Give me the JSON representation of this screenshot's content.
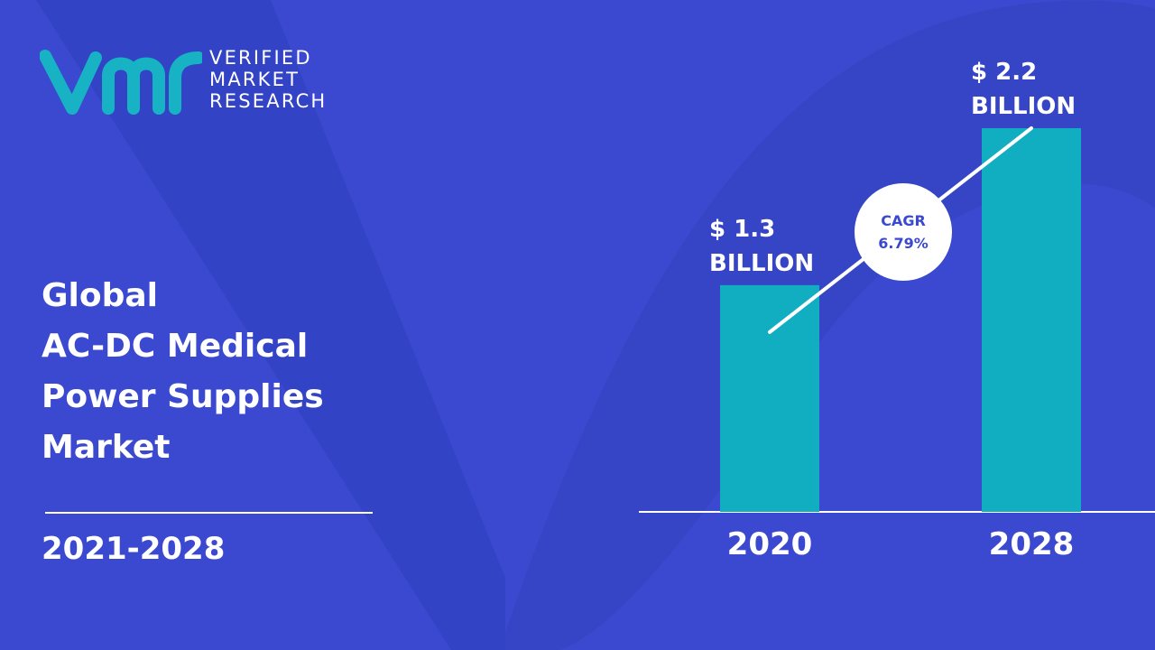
{
  "brand": {
    "lines": [
      "VERIFIED",
      "MARKET",
      "RESEARCH"
    ],
    "colors": {
      "teal": "#17b3c4",
      "deep_blue": "#2f3fbf",
      "blue": "#3a49cf"
    }
  },
  "title_lines": [
    "Global",
    "AC-DC Medical",
    "Power Supplies",
    "Market"
  ],
  "period": "2021-2028",
  "chart_data": {
    "type": "bar",
    "categories": [
      "2020",
      "2028"
    ],
    "values": [
      1.3,
      2.2
    ],
    "value_labels": [
      [
        "$ 1.3",
        "BILLION"
      ],
      [
        "$ 2.2",
        "BILLION"
      ]
    ],
    "annotation": {
      "lines": [
        "CAGR",
        "6.79%"
      ]
    },
    "bar_color": "#11adc0",
    "ylim": [
      0,
      2.2
    ],
    "title": "",
    "xlabel": "",
    "ylabel": ""
  }
}
